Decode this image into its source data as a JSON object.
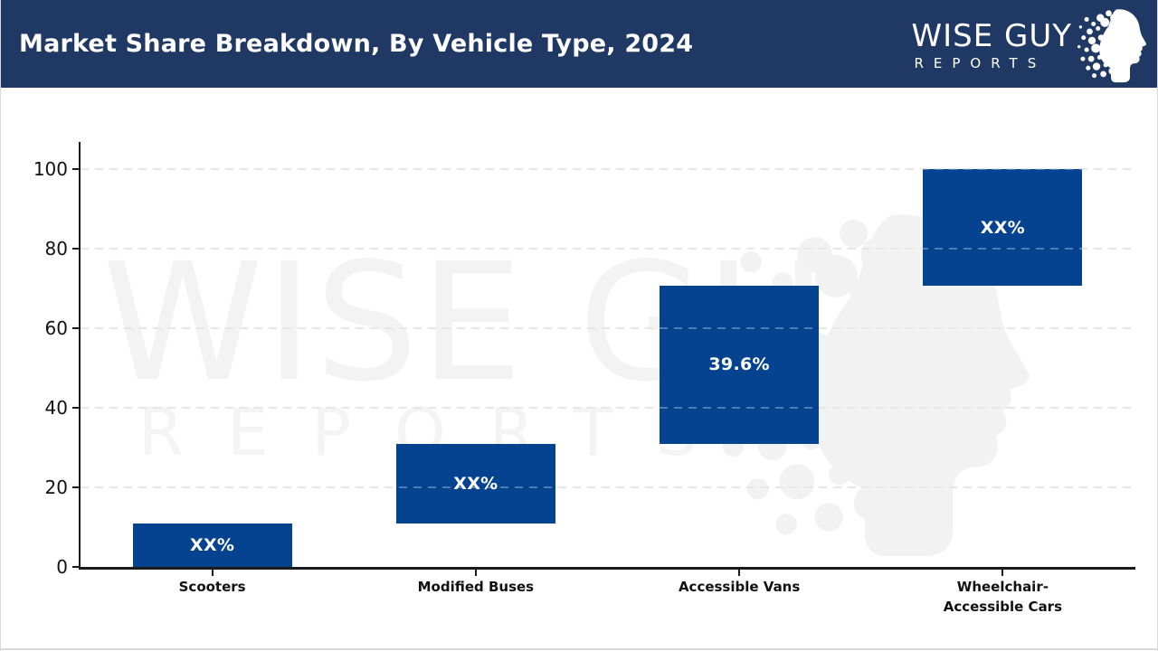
{
  "header": {
    "title": "Market Share Breakdown, By Vehicle Type, 2024",
    "logo": {
      "line1": "WISE GUY",
      "line2": "REPORTS"
    }
  },
  "watermark": {
    "line1": "WISE GUY",
    "line2": "REPORTS"
  },
  "colors": {
    "header_bg": "#1F3864",
    "bar": "#05428F",
    "grid": "#DCDCDC",
    "axis": "#1A1A1A",
    "bar_label": "#FFFFFF",
    "watermark": "#F3F3F3",
    "border": "#D9D9D9"
  },
  "chart_data": {
    "type": "bar",
    "subtype": "floating-waterfall",
    "title": "Market Share Breakdown, By Vehicle Type, 2024",
    "xlabel": "",
    "ylabel": "",
    "ylim": [
      0,
      107
    ],
    "y_ticks": [
      0,
      20,
      40,
      60,
      80,
      100
    ],
    "grid": "dashed-horizontal",
    "legend": "none",
    "bar_color": "#05428F",
    "bars": [
      {
        "category_lines": [
          "Scooters"
        ],
        "label": "XX%",
        "start": 0,
        "end": 11
      },
      {
        "category_lines": [
          "Modified Buses"
        ],
        "label": "XX%",
        "start": 11,
        "end": 31
      },
      {
        "category_lines": [
          "Accessible Vans"
        ],
        "label": "39.6%",
        "start": 31,
        "end": 70.6
      },
      {
        "category_lines": [
          "Wheelchair-",
          "Accessible Cars"
        ],
        "label": "XX%",
        "start": 70.6,
        "end": 100
      }
    ]
  }
}
